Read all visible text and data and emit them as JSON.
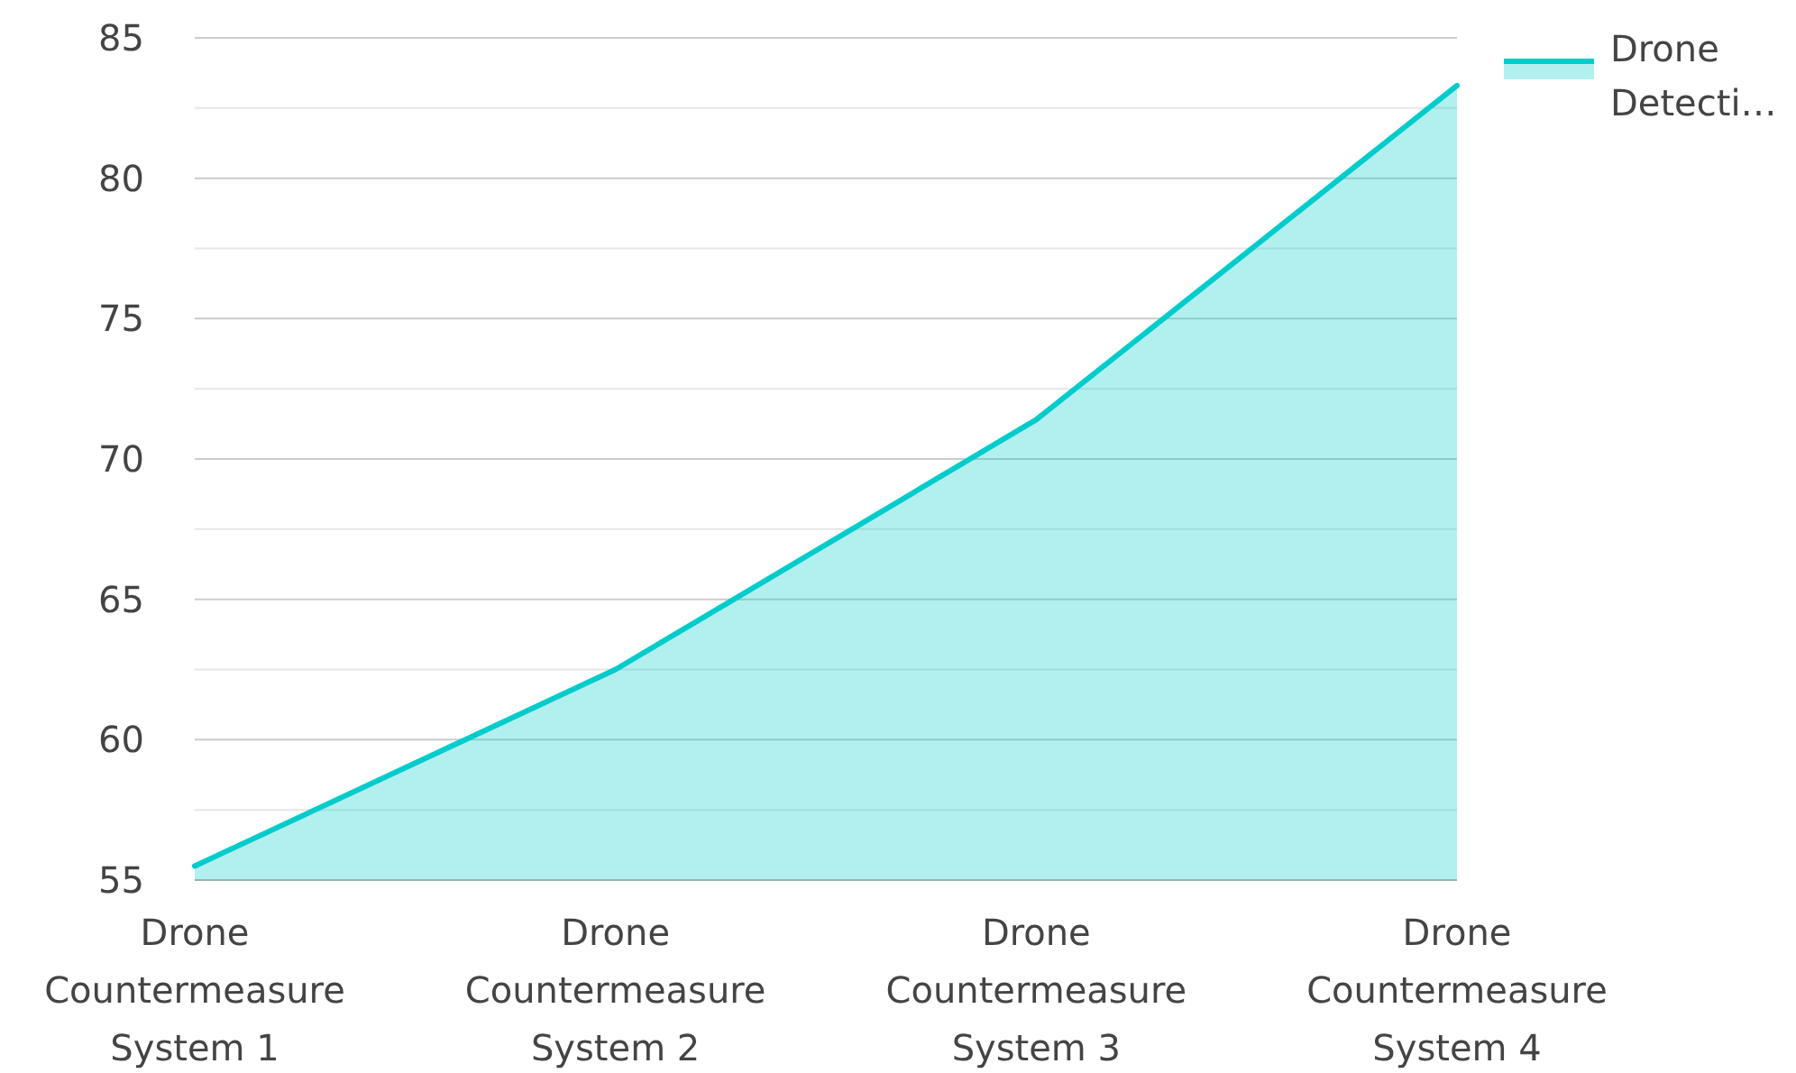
{
  "chart_data": {
    "type": "area",
    "categories": [
      "Drone Countermeasure System 1",
      "Drone Countermeasure System 2",
      "Drone Countermeasure System 3",
      "Drone Countermeasure System 4"
    ],
    "series": [
      {
        "name": "Drone Detecti…",
        "color": "#00cccc",
        "values": [
          55.5,
          62.5,
          71.4,
          83.3
        ]
      }
    ],
    "ylim": [
      55,
      85
    ],
    "yticks": [
      55,
      {
        "value": 57.5,
        "label": null
      },
      60,
      {
        "value": 62.5,
        "label": null
      },
      65,
      {
        "value": 67.5,
        "label": null
      },
      70,
      {
        "value": 72.5,
        "label": null
      },
      75,
      {
        "value": 77.5,
        "label": null
      },
      80,
      {
        "value": 82.5,
        "label": null
      },
      85
    ],
    "grid": "y",
    "legend": "top right"
  }
}
